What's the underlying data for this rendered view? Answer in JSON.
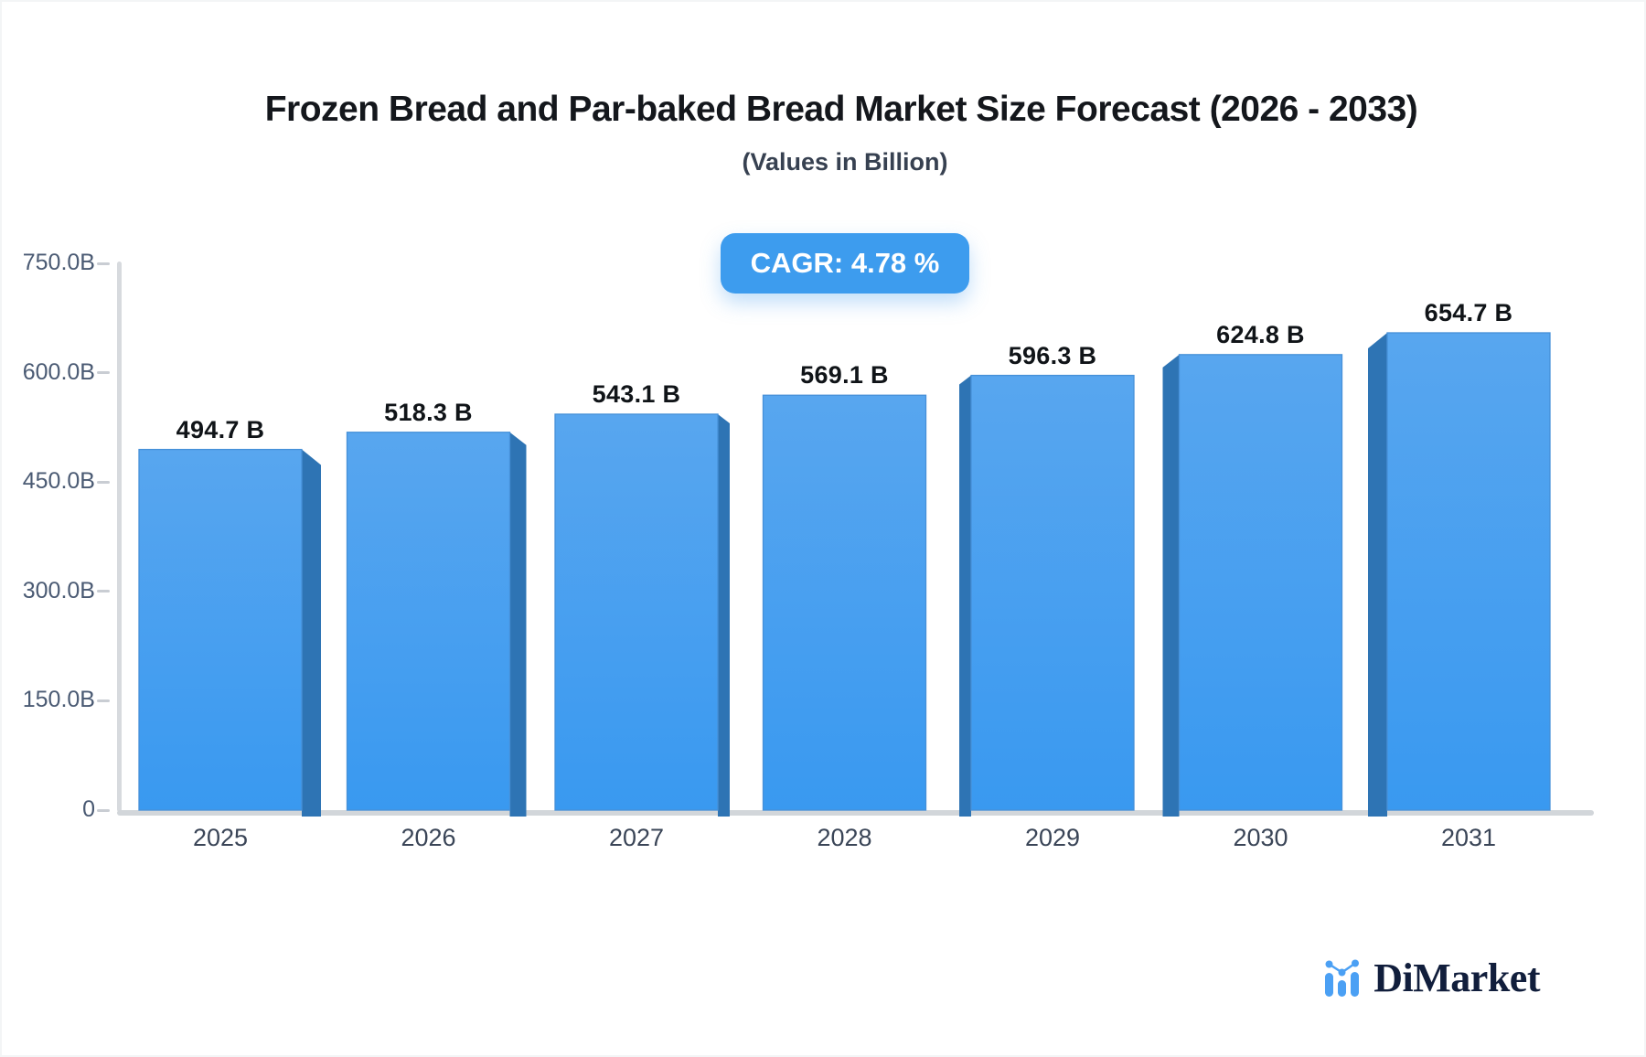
{
  "header": {
    "title": "Frozen Bread and Par-baked Bread Market Size Forecast (2026 - 2033)",
    "subtitle": "(Values in Billion)"
  },
  "badge": {
    "label": "CAGR: 4.78 %",
    "color": "#3D9CEE"
  },
  "brand": {
    "name": "DiMarket",
    "icon": "bar-line-chart-icon",
    "icon_color": "#4BA0F4",
    "text_color": "#111E3C"
  },
  "chart_data": {
    "type": "bar",
    "title": "Frozen Bread and Par-baked Bread Market Size Forecast (2026 - 2033)",
    "subtitle": "(Values in Billion)",
    "categories": [
      "2025",
      "2026",
      "2027",
      "2028",
      "2029",
      "2030",
      "2031"
    ],
    "values": [
      494.7,
      518.3,
      543.1,
      569.1,
      596.3,
      624.8,
      654.7
    ],
    "value_labels": [
      "494.7 B",
      "518.3 B",
      "543.1 B",
      "569.1 B",
      "596.3 B",
      "624.8 B",
      "654.7 B"
    ],
    "cagr_annotation": "CAGR: 4.78 %",
    "xlabel": "",
    "ylabel": "",
    "ylim": [
      0,
      750
    ],
    "grid": false,
    "legend": "none",
    "y_ticks": [
      {
        "label": "750.0B",
        "value": 750
      },
      {
        "label": "600.0B",
        "value": 600
      },
      {
        "label": "450.0B",
        "value": 450
      },
      {
        "label": "300.0B",
        "value": 300
      },
      {
        "label": "150.0B",
        "value": 150
      },
      {
        "label": "0",
        "value": 0
      }
    ],
    "bar_color_top": "#58A6EF",
    "bar_color_bottom": "#3999F0",
    "bar_outline_color": "#4690D8",
    "bar_side_color": "#2E74B4",
    "axis_color": "#D7DADE"
  }
}
